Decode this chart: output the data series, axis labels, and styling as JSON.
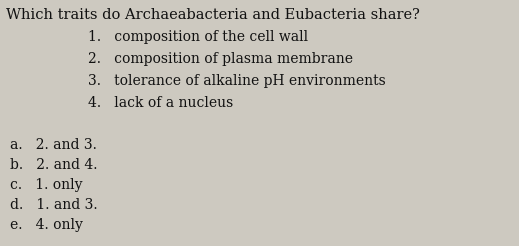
{
  "background_color": "#cdc9c0",
  "title": "Which traits do Archaeabacteria and Eubacteria share?",
  "numbered_items": [
    "1.   composition of the cell wall",
    "2.   composition of plasma membrane",
    "3.   tolerance of alkaline pH environments",
    "4.   lack of a nucleus"
  ],
  "lettered_items": [
    "a.   2. and 3.",
    "b.   2. and 4.",
    "c.   1. only",
    "d.   1. and 3.",
    "e.   4. only"
  ],
  "font_color": "#111111",
  "font_family": "DejaVu Serif",
  "title_fontsize": 10.5,
  "item_fontsize": 10.0,
  "fig_width": 5.19,
  "fig_height": 2.46,
  "dpi": 100
}
